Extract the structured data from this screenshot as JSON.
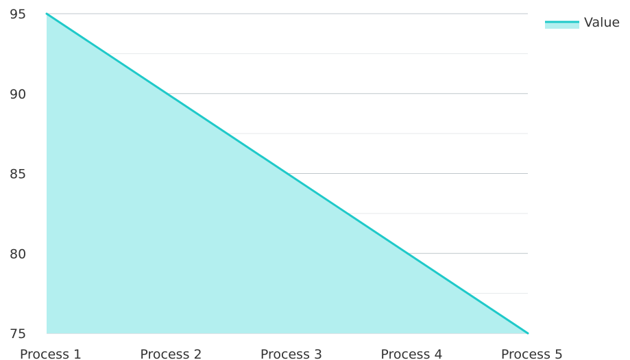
{
  "chart_data": {
    "type": "area",
    "categories": [
      "Process 1",
      "Process 2",
      "Process 3",
      "Process 4",
      "Process 5"
    ],
    "series": [
      {
        "name": "Value",
        "values": [
          95,
          90,
          85,
          80,
          75
        ]
      }
    ],
    "ylim": [
      75,
      95
    ],
    "yticks": [
      75,
      80,
      85,
      90,
      95
    ],
    "grid": true,
    "legend": {
      "position": "top-right"
    },
    "colors": {
      "line": "#1fc9c9",
      "fill": "#b3efef",
      "grid_major": "#bfc7cc",
      "grid_minor": "#e6e9eb"
    }
  }
}
